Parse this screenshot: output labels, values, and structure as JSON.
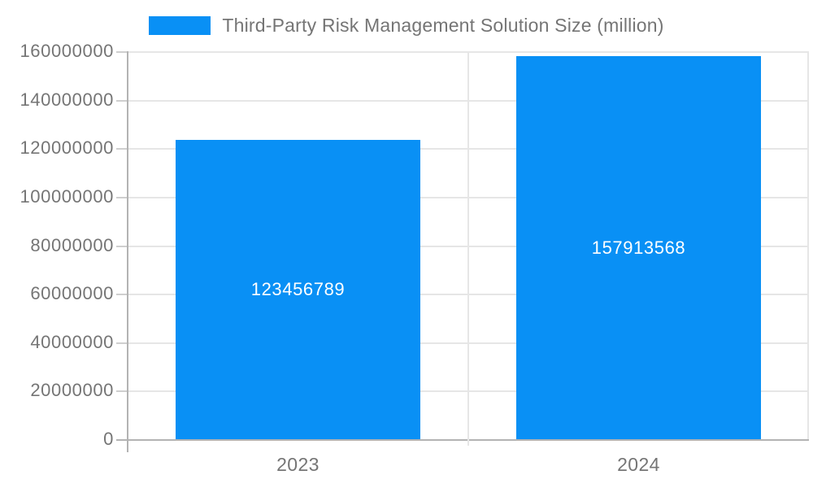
{
  "legend": {
    "label": "Third-Party Risk Management Solution Size (million)"
  },
  "colors": {
    "bar": "#0990f5",
    "axis_text": "#757575",
    "value_text": "#ffffff",
    "gridline": "#e6e6e6",
    "axis_line": "#b3b3b3",
    "background": "#ffffff"
  },
  "chart_data": {
    "type": "bar",
    "title": "Third-Party Risk Management Solution Size (million)",
    "categories": [
      "2023",
      "2024"
    ],
    "series": [
      {
        "name": "Third-Party Risk Management Solution Size (million)",
        "values": [
          123456789,
          157913568
        ]
      }
    ],
    "value_labels": [
      "123456789",
      "157913568"
    ],
    "xlabel": "",
    "ylabel": "",
    "ylim": [
      0,
      160000000
    ],
    "ytick_step": 20000000,
    "ytick_labels": [
      "0",
      "20000000",
      "40000000",
      "60000000",
      "80000000",
      "100000000",
      "120000000",
      "140000000",
      "160000000"
    ],
    "grid": true,
    "legend_position": "top"
  }
}
